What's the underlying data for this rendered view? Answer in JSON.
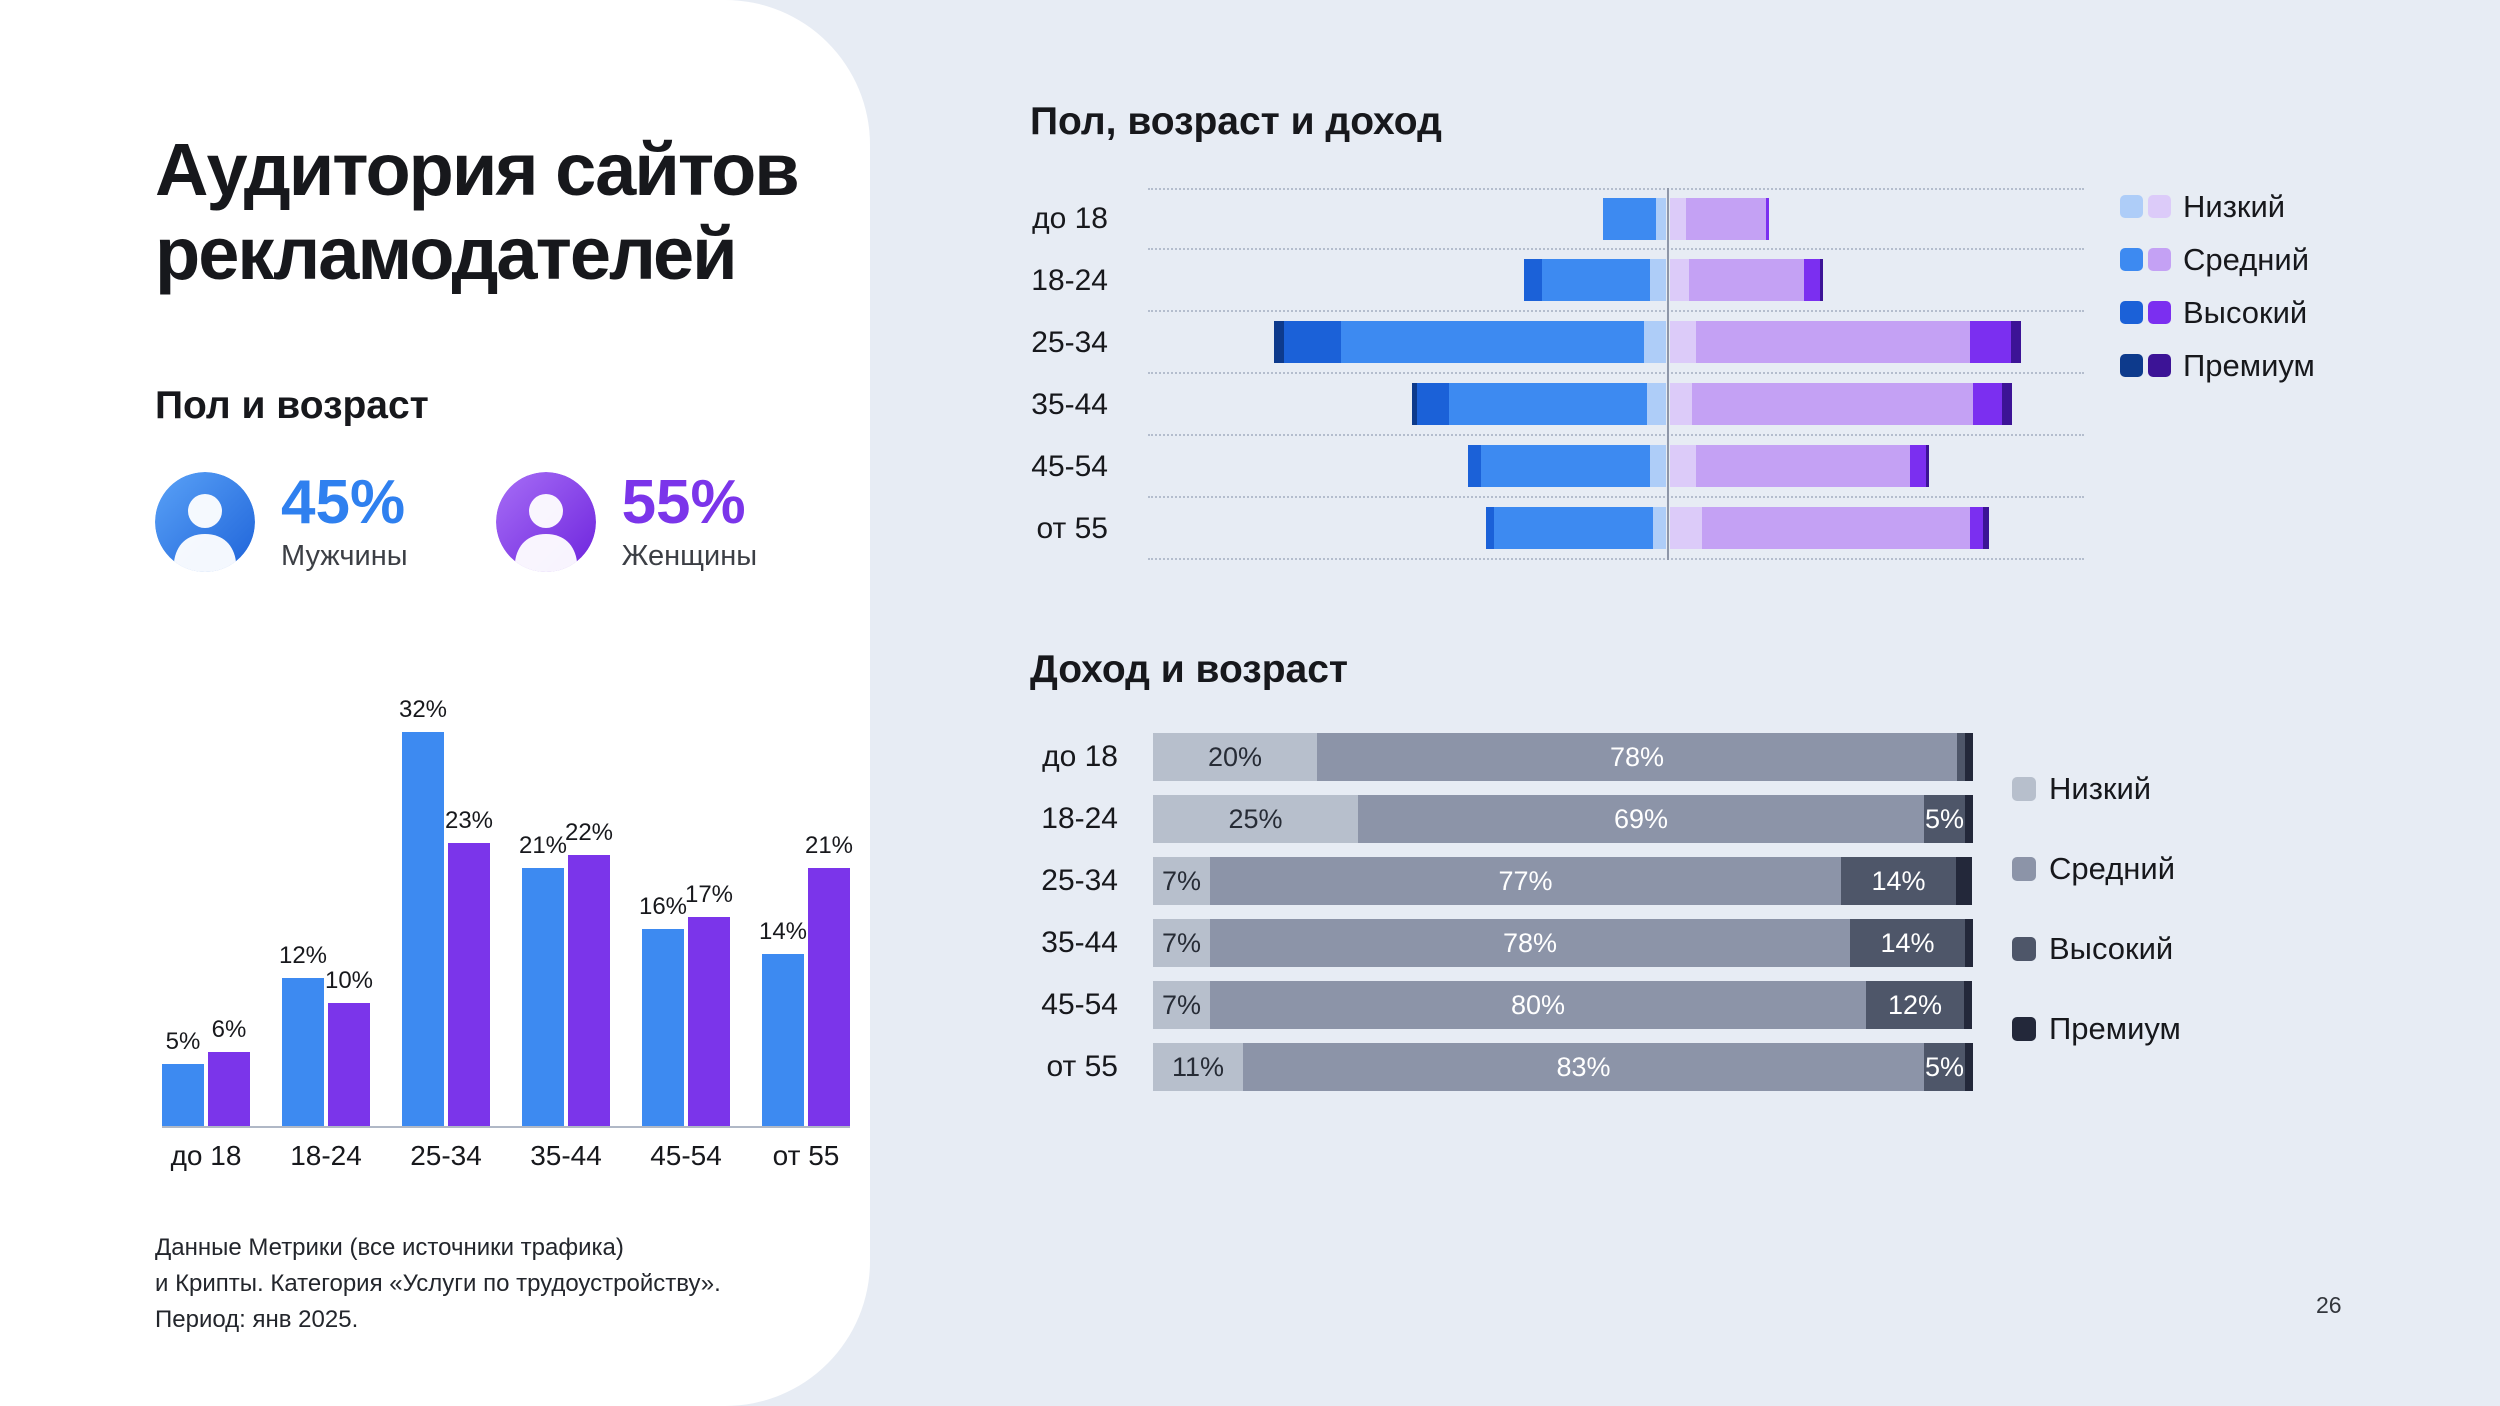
{
  "slide": {
    "page_number": "26",
    "background_color": "#e7ecf4",
    "panel": {
      "title": "Аудитория сайтов\nрекламодателей",
      "footnote": "Данные Метрики (все источники трафика)\nи Крипты. Категория «Услуги по трудоустройству».\nПериод: янв 2025.",
      "gender_split": {
        "men": {
          "value": "45%",
          "label": "Мужчины",
          "color": "#2f80ef"
        },
        "women": {
          "value": "55%",
          "label": "Женщины",
          "color": "#7b35ea"
        }
      }
    }
  },
  "chart_data": [
    {
      "id": "gender_age",
      "type": "bar",
      "title": "Пол и возраст",
      "categories": [
        "до 18",
        "18-24",
        "25-34",
        "35-44",
        "45-54",
        "от 55"
      ],
      "series": [
        {
          "name": "Мужчины",
          "color": "#3d8af1",
          "values": [
            5,
            12,
            32,
            21,
            16,
            14
          ]
        },
        {
          "name": "Женщины",
          "color": "#7b35ea",
          "values": [
            6,
            10,
            23,
            22,
            17,
            21
          ]
        }
      ],
      "value_suffix": "%",
      "xlabel": "",
      "ylabel": "",
      "grid": false,
      "legend_position": "none"
    },
    {
      "id": "gender_age_income",
      "type": "bar",
      "subtype": "butterfly-stacked",
      "title": "Пол, возраст и доход",
      "categories": [
        "до 18",
        "18-24",
        "25-34",
        "35-44",
        "45-54",
        "от 55"
      ],
      "legend": [
        {
          "label": "Низкий",
          "tier": "low"
        },
        {
          "label": "Средний",
          "tier": "mid"
        },
        {
          "label": "Высокий",
          "tier": "high"
        },
        {
          "label": "Премиум",
          "tier": "premium"
        }
      ],
      "colors": {
        "men": {
          "low": "#aecdf8",
          "mid": "#3d8af1",
          "high": "#1b61d8",
          "premium": "#0d3a8c"
        },
        "women": {
          "low": "#dccbf9",
          "mid": "#c4a1f4",
          "high": "#7b2ff0",
          "premium": "#3c1396"
        }
      },
      "rows": [
        {
          "category": "до 18",
          "men": {
            "low": 6,
            "mid": 33,
            "high": 0,
            "premium": 0
          },
          "women": {
            "low": 10,
            "mid": 50,
            "high": 2,
            "premium": 0
          }
        },
        {
          "category": "18-24",
          "men": {
            "low": 10,
            "mid": 68,
            "high": 11,
            "premium": 0
          },
          "women": {
            "low": 12,
            "mid": 72,
            "high": 10,
            "premium": 2
          }
        },
        {
          "category": "25-34",
          "men": {
            "low": 14,
            "mid": 190,
            "high": 36,
            "premium": 6
          },
          "women": {
            "low": 16,
            "mid": 172,
            "high": 26,
            "premium": 6
          }
        },
        {
          "category": "35-44",
          "men": {
            "low": 12,
            "mid": 124,
            "high": 20,
            "premium": 3
          },
          "women": {
            "low": 14,
            "mid": 176,
            "high": 18,
            "premium": 6
          }
        },
        {
          "category": "45-54",
          "men": {
            "low": 10,
            "mid": 106,
            "high": 8,
            "premium": 0
          },
          "women": {
            "low": 16,
            "mid": 134,
            "high": 10,
            "premium": 2
          }
        },
        {
          "category": "от 55",
          "men": {
            "low": 8,
            "mid": 100,
            "high": 5,
            "premium": 0
          },
          "women": {
            "low": 20,
            "mid": 168,
            "high": 8,
            "premium": 4
          }
        }
      ],
      "legend_position": "right"
    },
    {
      "id": "income_age",
      "type": "bar",
      "subtype": "stacked-horizontal-100",
      "title": "Доход и возраст",
      "categories": [
        "до 18",
        "18-24",
        "25-34",
        "35-44",
        "45-54",
        "от 55"
      ],
      "legend": [
        {
          "label": "Низкий",
          "tier": "low"
        },
        {
          "label": "Средний",
          "tier": "mid"
        },
        {
          "label": "Высокий",
          "tier": "high"
        },
        {
          "label": "Премиум",
          "tier": "premium"
        }
      ],
      "colors": {
        "low": "#b7bfcc",
        "mid": "#8c94a8",
        "high": "#4e5669",
        "premium": "#23283a"
      },
      "rows": [
        {
          "category": "до 18",
          "segments": [
            {
              "tier": "low",
              "value": 20,
              "label": "20%"
            },
            {
              "tier": "mid",
              "value": 78,
              "label": "78%"
            },
            {
              "tier": "high",
              "value": 1,
              "label": ""
            },
            {
              "tier": "premium",
              "value": 1,
              "label": ""
            }
          ]
        },
        {
          "category": "18-24",
          "segments": [
            {
              "tier": "low",
              "value": 25,
              "label": "25%"
            },
            {
              "tier": "mid",
              "value": 69,
              "label": "69%"
            },
            {
              "tier": "high",
              "value": 5,
              "label": "5%"
            },
            {
              "tier": "premium",
              "value": 1,
              "label": ""
            }
          ]
        },
        {
          "category": "25-34",
          "segments": [
            {
              "tier": "low",
              "value": 7,
              "label": "7%"
            },
            {
              "tier": "mid",
              "value": 77,
              "label": "77%"
            },
            {
              "tier": "high",
              "value": 14,
              "label": "14%"
            },
            {
              "tier": "premium",
              "value": 2,
              "label": ""
            }
          ]
        },
        {
          "category": "35-44",
          "segments": [
            {
              "tier": "low",
              "value": 7,
              "label": "7%"
            },
            {
              "tier": "mid",
              "value": 78,
              "label": "78%"
            },
            {
              "tier": "high",
              "value": 14,
              "label": "14%"
            },
            {
              "tier": "premium",
              "value": 1,
              "label": ""
            }
          ]
        },
        {
          "category": "45-54",
          "segments": [
            {
              "tier": "low",
              "value": 7,
              "label": "7%"
            },
            {
              "tier": "mid",
              "value": 80,
              "label": "80%"
            },
            {
              "tier": "high",
              "value": 12,
              "label": "12%"
            },
            {
              "tier": "premium",
              "value": 1,
              "label": ""
            }
          ]
        },
        {
          "category": "от 55",
          "segments": [
            {
              "tier": "low",
              "value": 11,
              "label": "11%"
            },
            {
              "tier": "mid",
              "value": 83,
              "label": "83%"
            },
            {
              "tier": "high",
              "value": 5,
              "label": "5%"
            },
            {
              "tier": "premium",
              "value": 1,
              "label": ""
            }
          ]
        }
      ],
      "legend_position": "right"
    }
  ]
}
